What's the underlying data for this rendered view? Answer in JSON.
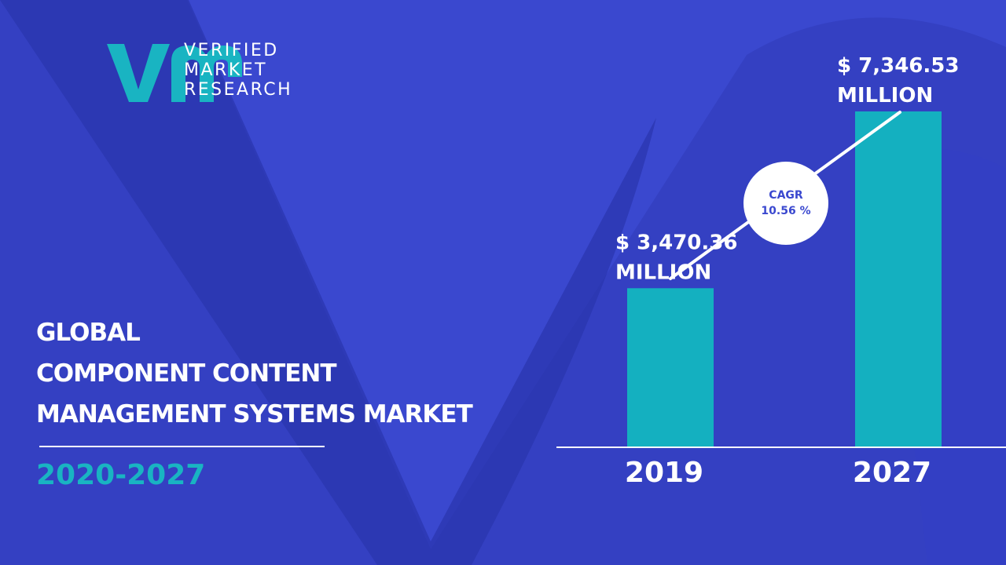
{
  "brand": {
    "name_lines": [
      "VERIFIED",
      "MARKET",
      "RESEARCH"
    ],
    "logo_mark": "vmr",
    "logo_color": "#19b4c2"
  },
  "title_lines": [
    "GLOBAL",
    "COMPONENT CONTENT",
    "MANAGEMENT SYSTEMS MARKET"
  ],
  "period": "2020-2027",
  "colors": {
    "background": "#3a48cf",
    "background_shape": "#2f3ab8",
    "bar": "#14b0c0",
    "text": "#ffffff",
    "accent": "#19b4c2"
  },
  "chart_data": {
    "type": "bar",
    "categories": [
      "2019",
      "2027"
    ],
    "values": [
      3470.36,
      7346.53
    ],
    "value_labels": [
      [
        "$ 3,470.36",
        "MILLION"
      ],
      [
        "$ 7,346.53",
        "MILLION"
      ]
    ],
    "annotation": {
      "label": "CAGR",
      "value": "10.56 %"
    },
    "grid": false,
    "legend": "none"
  }
}
